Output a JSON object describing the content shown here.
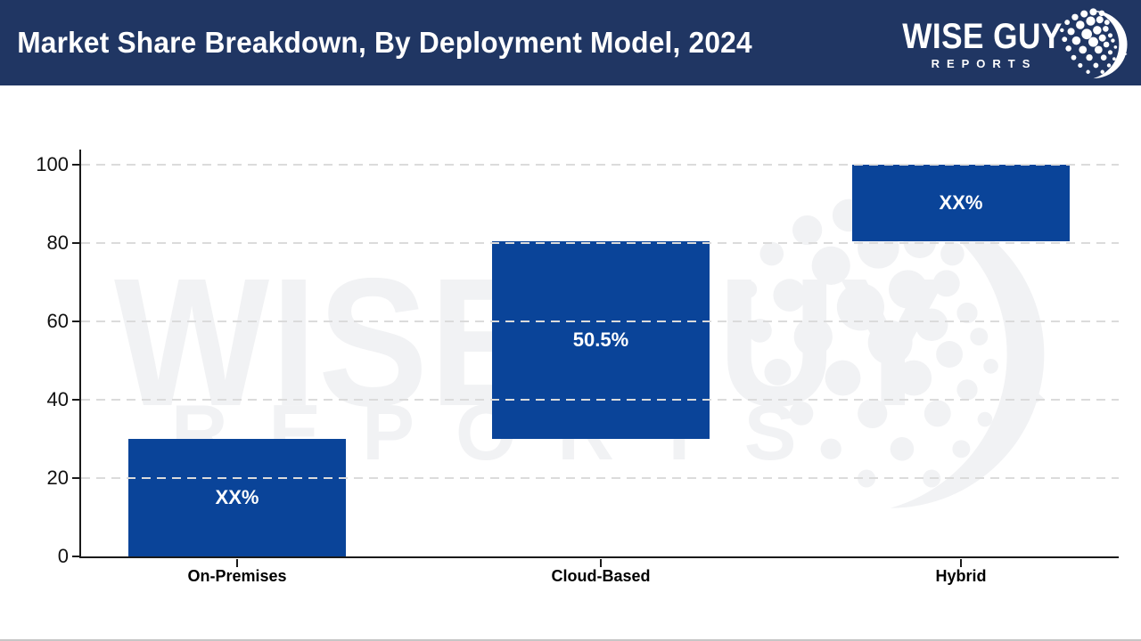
{
  "header": {
    "title": "Market Share Breakdown, By Deployment Model, 2024",
    "logo": {
      "name_line": "WISE GUY",
      "reports_line": "REPORTS"
    }
  },
  "watermark": {
    "name_line": "WISE GUY",
    "reports_line": "REPORTS"
  },
  "chart_data": {
    "type": "bar",
    "subtype": "floating-waterfall",
    "title": "Market Share Breakdown, By Deployment Model, 2024",
    "categories": [
      "On-Premises",
      "Cloud-Based",
      "Hybrid"
    ],
    "segments": [
      {
        "category": "On-Premises",
        "label": "XX%",
        "start": 0,
        "end": 30
      },
      {
        "category": "Cloud-Based",
        "label": "50.5%",
        "start": 30,
        "end": 80.5
      },
      {
        "category": "Hybrid",
        "label": "XX%",
        "start": 80.5,
        "end": 100
      }
    ],
    "xlabel": "",
    "ylabel": "",
    "ylim": [
      0,
      104
    ],
    "yticks": [
      0,
      20,
      40,
      60,
      80,
      100
    ],
    "grid": "horizontal-dashed",
    "legend": "none",
    "bar_color": "#0a4499",
    "bar_label_color": "#ffffff",
    "grid_color": "#dbdbdb",
    "axis_color": "#1a1a1a",
    "header_bg_color": "#203663",
    "watermark_color": "#f1f2f4"
  }
}
